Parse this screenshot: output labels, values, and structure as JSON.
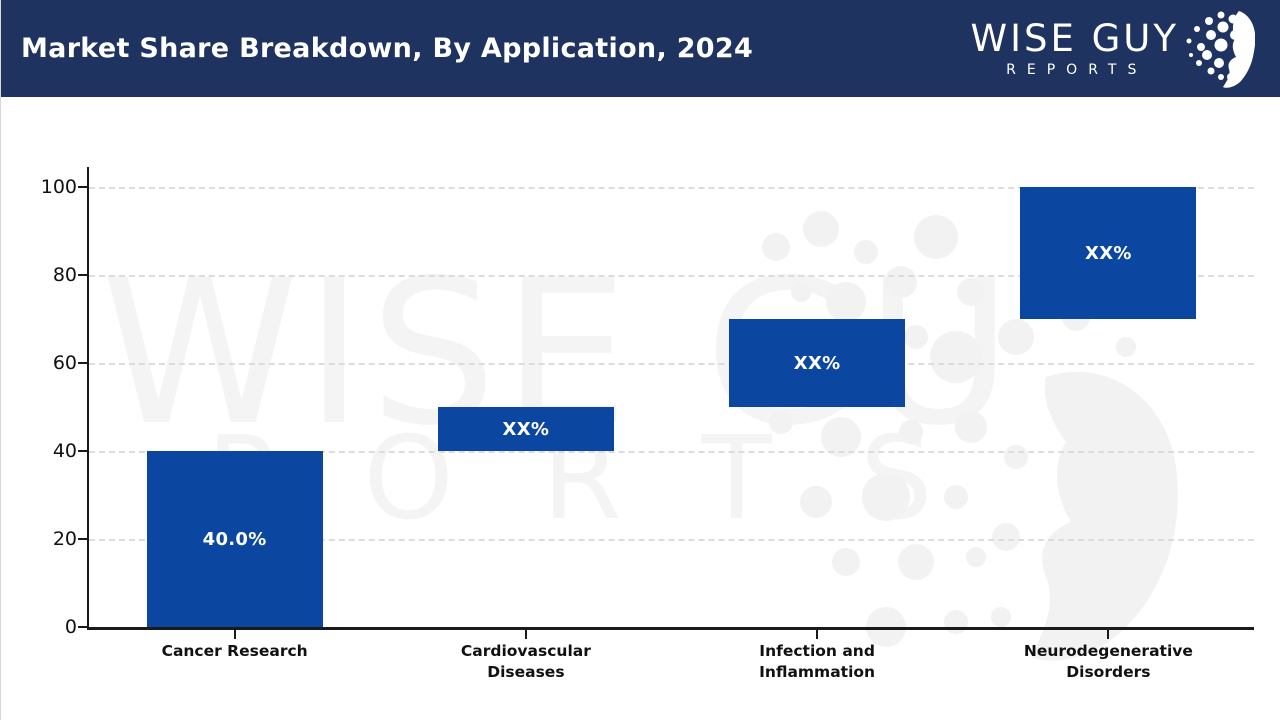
{
  "header": {
    "title": "Market Share Breakdown, By Application, 2024",
    "bg_color": "#1f3361",
    "logo": {
      "line1": "WISE GUY",
      "line2": "REPORTS"
    }
  },
  "watermark": {
    "line1": "WISE GU",
    "line2": "PORTS"
  },
  "chart_data": {
    "type": "bar",
    "subtype": "waterfall",
    "title": "Market Share Breakdown, By Application, 2024",
    "categories": [
      "Cancer Research",
      "Cardiovascular Diseases",
      "Infection and Inflammation",
      "Neurodegenerative Disorders"
    ],
    "bars": [
      {
        "category_lines": [
          "Cancer Research"
        ],
        "start": 0,
        "end": 40,
        "value": 40,
        "label": "40.0%"
      },
      {
        "category_lines": [
          "Cardiovascular",
          "Diseases"
        ],
        "start": 40,
        "end": 50,
        "value": 10,
        "label": "XX%"
      },
      {
        "category_lines": [
          "Infection and",
          "Inflammation"
        ],
        "start": 50,
        "end": 70,
        "value": 20,
        "label": "XX%"
      },
      {
        "category_lines": [
          "Neurodegenerative",
          "Disorders"
        ],
        "start": 70,
        "end": 100,
        "value": 30,
        "label": "XX%"
      }
    ],
    "xlabel": "",
    "ylabel": "",
    "yticks": [
      0,
      20,
      40,
      60,
      80,
      100
    ],
    "ylim": [
      0,
      105
    ],
    "grid": {
      "axis": "y",
      "style": "dashed",
      "color": "#dcdcdc"
    },
    "legend": "none",
    "bar_color": "#0b47a1",
    "bar_label_color": "#ffffff",
    "axis_color": "#1a1a1a"
  }
}
